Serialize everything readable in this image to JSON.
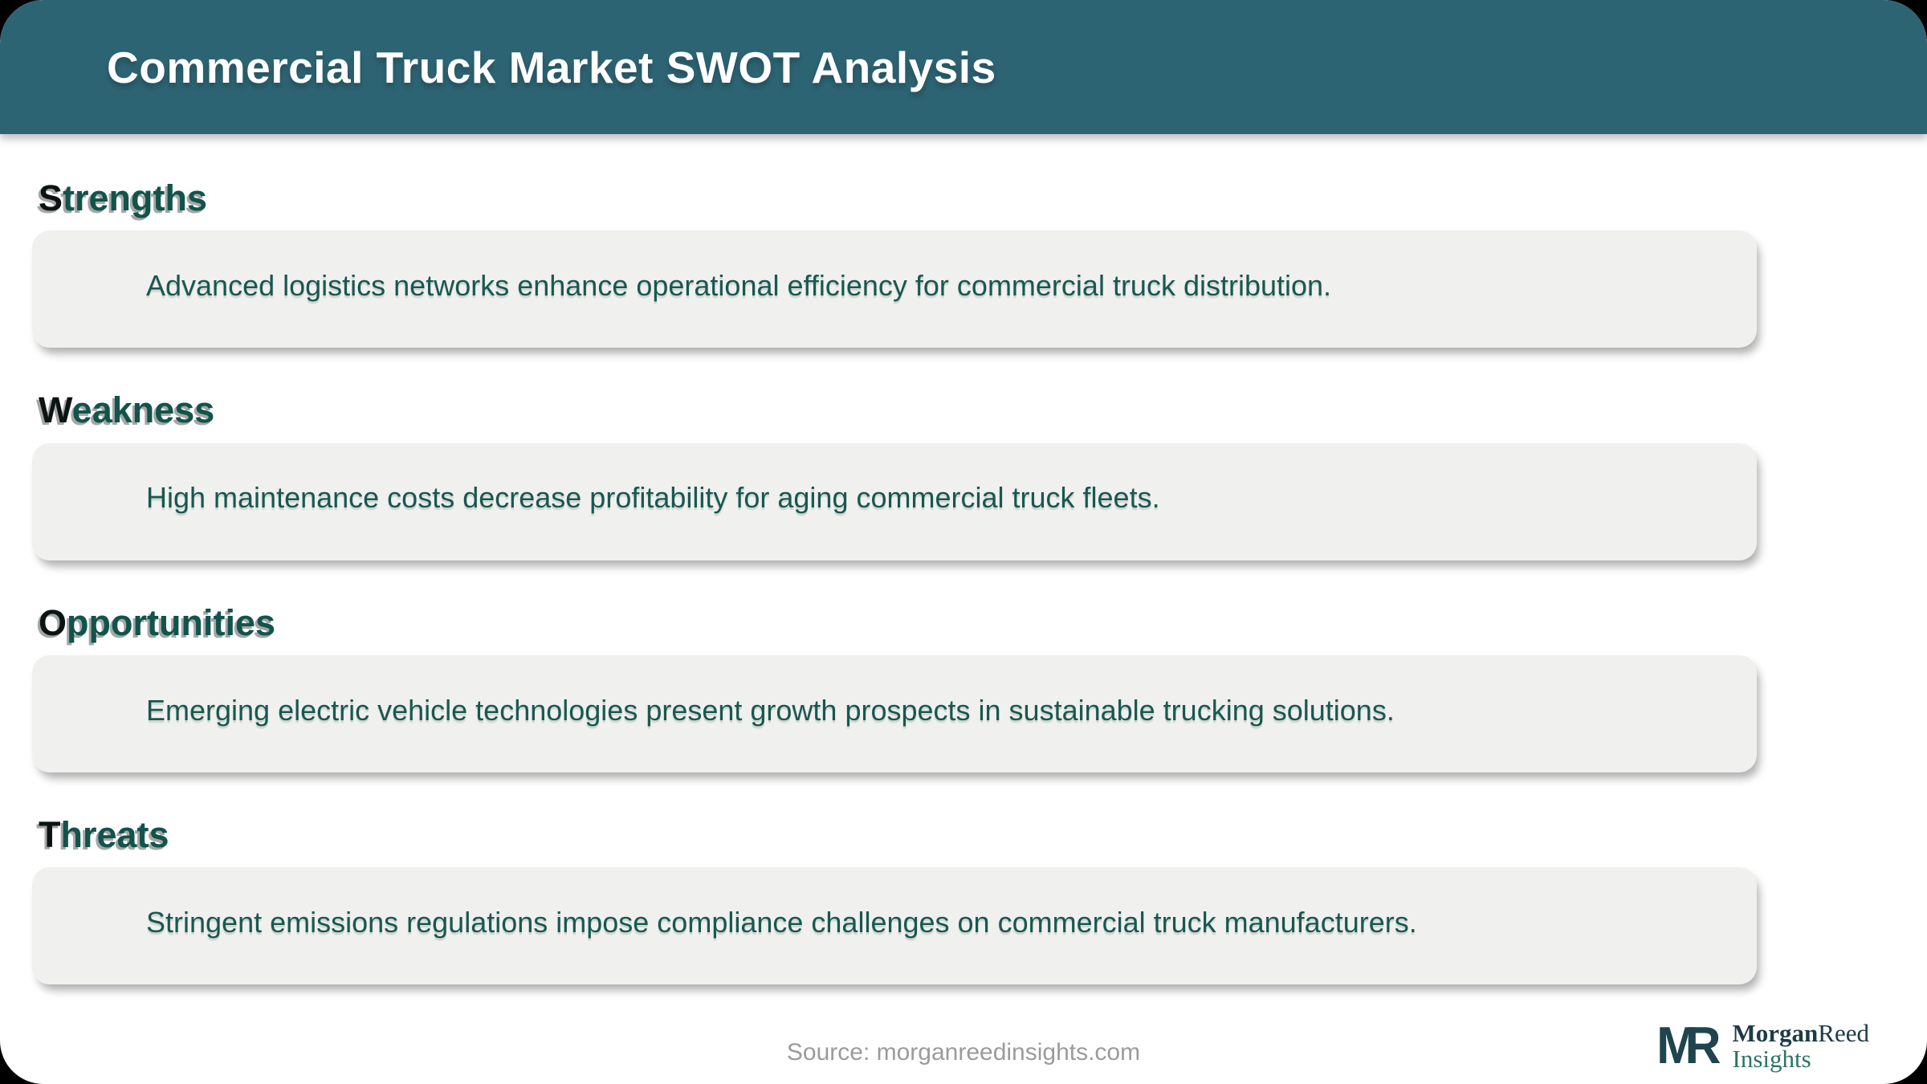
{
  "header": {
    "title": "Commercial Truck Market SWOT Analysis"
  },
  "sections": [
    {
      "id": "strengths",
      "heading": "Strengths",
      "text": "Advanced logistics networks enhance operational efficiency for commercial truck distribution."
    },
    {
      "id": "weakness",
      "heading": "Weakness",
      "text": "High maintenance costs decrease profitability for aging commercial truck fleets."
    },
    {
      "id": "opportunities",
      "heading": "Opportunities",
      "text": "Emerging electric vehicle technologies present growth prospects in sustainable trucking solutions."
    },
    {
      "id": "threats",
      "heading": "Threats",
      "text": "Stringent emissions regulations impose compliance challenges on commercial truck manufacturers."
    }
  ],
  "footer": {
    "source_text": "Source: morganreedinsights.com",
    "logo": {
      "monogram": "MR",
      "brand_bold": "Morgan",
      "brand_regular": "Reed",
      "brand_tagline": "Insights"
    }
  },
  "colors": {
    "page_bg": "#000000",
    "card_bg": "#ffffff",
    "header_bg": "#2d6473",
    "title_text": "#ffffff",
    "heading_text": "#10544b",
    "body_text": "#17584f",
    "box_bg": "#f0f0ef",
    "source_text": "#9b9b9b",
    "logo_monogram": "#20444d",
    "logo_name": "#1e3a46",
    "logo_tagline": "#2d7363"
  }
}
